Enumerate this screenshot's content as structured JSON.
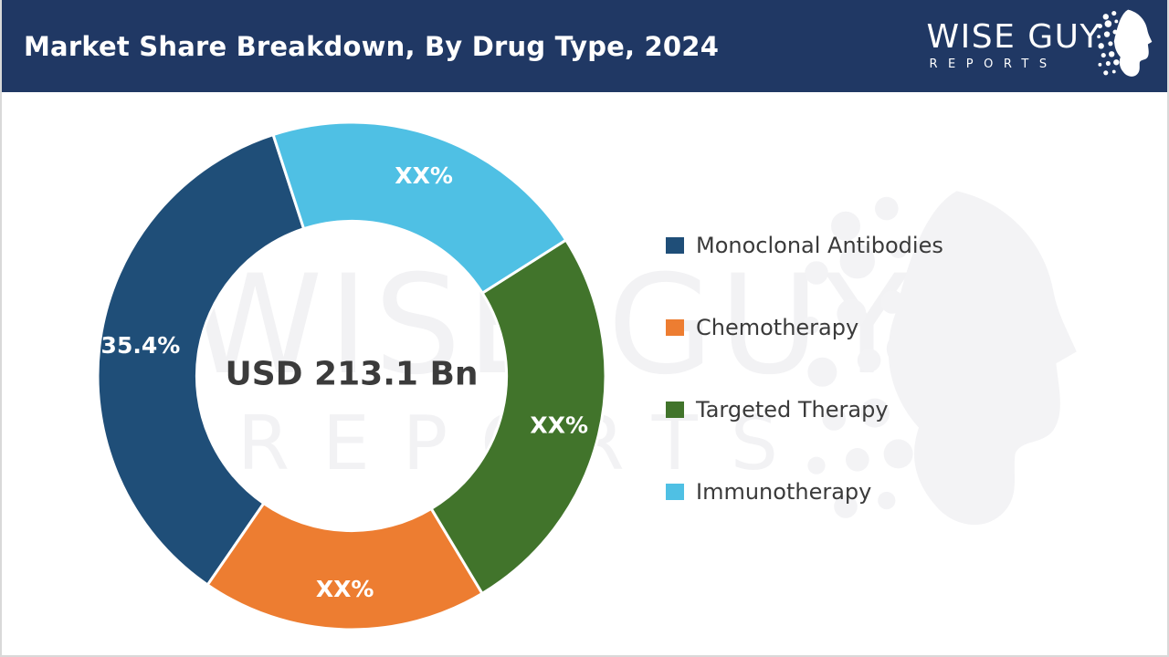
{
  "header": {
    "title": "Market Share Breakdown, By Drug Type, 2024",
    "background": "#203864",
    "logo": {
      "line1": "WISE GUY",
      "line2": "REPORTS"
    }
  },
  "watermark": {
    "line1": "WISE GUY",
    "line2": "REPORTS"
  },
  "chart_data": {
    "type": "pie",
    "subtype": "donut",
    "title": "Market Share Breakdown, By Drug Type, 2024",
    "center_label": "USD 213.1 Bn",
    "start_angle_deg": 108,
    "direction": "counterclockwise",
    "inner_radius_ratio": 0.61,
    "label_radius_ratio": 0.84,
    "slice_gap_color": "#ffffff",
    "slice_label_color": "#ffffff",
    "legend_position": "right",
    "slices": [
      {
        "name": "Monoclonal Antibodies",
        "value": 35.4,
        "display_label": "35.4%",
        "color": "#1F4E78"
      },
      {
        "name": "Chemotherapy",
        "value": 18.2,
        "display_label": "XX%",
        "color": "#ED7D31"
      },
      {
        "name": "Targeted Therapy",
        "value": 25.4,
        "display_label": "XX%",
        "color": "#41742B"
      },
      {
        "name": "Immunotherapy",
        "value": 21.0,
        "display_label": "XX%",
        "color": "#4FC0E4"
      }
    ]
  }
}
